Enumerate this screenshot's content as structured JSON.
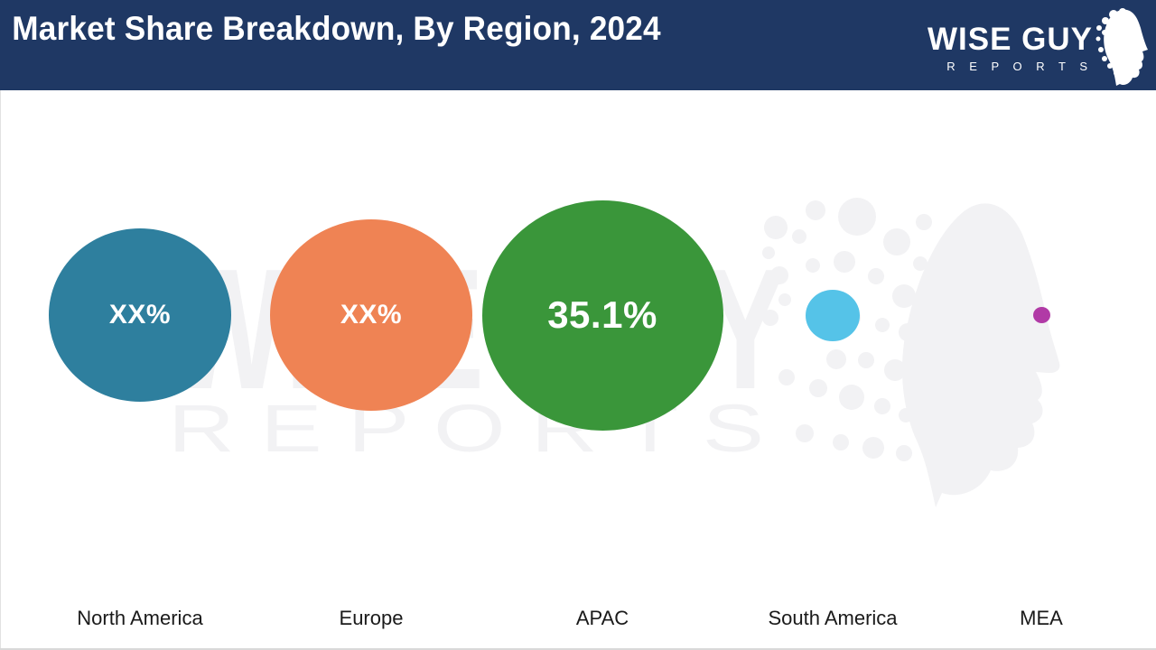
{
  "header": {
    "title": "Market Share Breakdown, By Region, 2024",
    "logo": {
      "brand": "WISE GUY",
      "sub": "R E P O R T S"
    }
  },
  "watermark": {
    "brand": "WISE GUY",
    "sub": "R E P O R T S"
  },
  "chart_data": {
    "type": "bubble",
    "title": "Market Share Breakdown, By Region, 2024",
    "year": "2024",
    "categories": [
      "North America",
      "Europe",
      "APAC",
      "South America",
      "MEA"
    ],
    "series": [
      {
        "name": "North America",
        "label": "XX%",
        "value": null,
        "color": "#2e7f9e"
      },
      {
        "name": "Europe",
        "label": "XX%",
        "value": null,
        "color": "#ef8354"
      },
      {
        "name": "APAC",
        "label": "35.1%",
        "value": 35.1,
        "color": "#3a963a"
      },
      {
        "name": "South America",
        "label": "",
        "value": null,
        "color": "#55c3e8"
      },
      {
        "name": "MEA",
        "label": "",
        "value": null,
        "color": "#b13aa6"
      }
    ],
    "layout": {
      "centers_x": [
        154,
        410,
        666,
        921,
        1152
      ],
      "center_y": 249,
      "widths": [
        202,
        224,
        267,
        60,
        19
      ],
      "heights": [
        192,
        212,
        255,
        57,
        18
      ],
      "label_row_y": 572
    }
  },
  "colors": {
    "header_bg": "#1f3864",
    "background": "#ffffff",
    "watermark": "#f2f2f4",
    "label_text": "#1a1a1a"
  }
}
